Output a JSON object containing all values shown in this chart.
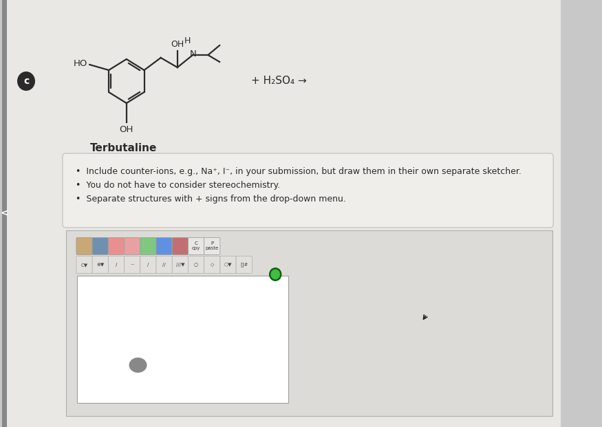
{
  "bg_color": "#c8c8c8",
  "panel_color": "#eae8e5",
  "info_box_color": "#f0eeeb",
  "drawing_area_color": "#ffffff",
  "toolbar_bg": "#dddbd8",
  "circle_c_bg": "#2a2a2a",
  "title": "Terbutaline",
  "reagent": "+ H₂SO₄ →",
  "bullet1": "Include counter-ions, e.g., Na⁺, I⁻, in your submission, but draw them in their own separate sketcher.",
  "bullet2": "You do not have to consider stereochemistry.",
  "bullet3": "Separate structures with + signs from the drop-down menu.",
  "line_color": "#2a2a2a",
  "text_color": "#2a2a2a"
}
